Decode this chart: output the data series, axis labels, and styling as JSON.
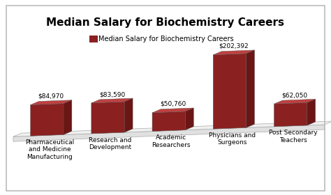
{
  "title": "Median Salary for Biochemistry Careers",
  "legend_label": "Median Salary for Biochemistry Careers",
  "categories": [
    "Pharmaceutical\nand Medicine\nManufacturing",
    "Research and\nDevelopment",
    "Academic\nResearchers",
    "Physicians and\nSurgeons",
    "Post Secondary\nTeachers"
  ],
  "values": [
    84970,
    83590,
    50760,
    202392,
    62050
  ],
  "value_labels": [
    "$84,970",
    "$83,590",
    "$50,760",
    "$202,392",
    "$62,050"
  ],
  "bar_color_front": "#8B2020",
  "bar_color_top": "#C04040",
  "bar_color_side": "#6B1515",
  "background_color": "#FFFFFF",
  "border_color": "#BBBBBB",
  "title_fontsize": 11,
  "label_fontsize": 6.5,
  "value_fontsize": 6.5,
  "legend_fontsize": 7,
  "legend_marker_color": "#8B2020"
}
